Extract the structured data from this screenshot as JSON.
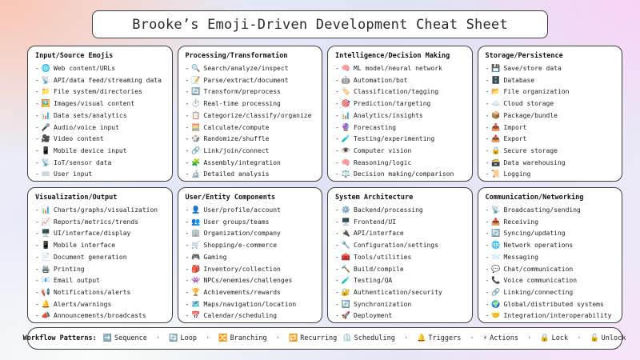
{
  "page_title": "Brooke’s Emoji-Driven Development Cheat Sheet",
  "item_prefix": "-",
  "theme": {
    "bg_corner_top_left": "#fac3ae",
    "bg_corner_top_right": "#fad1f5",
    "bg_center": "#dfe3f4",
    "bg_bottom": "#fafdf8",
    "panel_background": "#ffffff",
    "panel_border": "#3f3f3f",
    "text_color": "#222222"
  },
  "panels": [
    {
      "title": "Input/Source Emojis",
      "items": [
        {
          "icon": "globe",
          "emoji": "🌐",
          "label": "Web content/URLs"
        },
        {
          "icon": "satellite-antenna",
          "emoji": "📡",
          "label": "API/data feed/streaming data"
        },
        {
          "icon": "file-folder",
          "emoji": "📁",
          "label": "File system/directories"
        },
        {
          "icon": "framed-picture",
          "emoji": "🖼️",
          "label": "Images/visual content"
        },
        {
          "icon": "bar-chart",
          "emoji": "📊",
          "label": "Data sets/analytics"
        },
        {
          "icon": "microphone",
          "emoji": "🎤",
          "label": "Audio/voice input"
        },
        {
          "icon": "movie-camera",
          "emoji": "🎥",
          "label": "Video content"
        },
        {
          "icon": "mobile-phone",
          "emoji": "📱",
          "label": "Mobile device input"
        },
        {
          "icon": "satellite-antenna",
          "emoji": "📡",
          "label": "IoT/sensor data"
        },
        {
          "icon": "keyboard",
          "emoji": "⌨️",
          "label": "User input"
        }
      ]
    },
    {
      "title": "Processing/Transformation",
      "items": [
        {
          "icon": "magnifying-glass",
          "emoji": "🔍",
          "label": "Search/analyze/inspect"
        },
        {
          "icon": "memo",
          "emoji": "📝",
          "label": "Parse/extract/document"
        },
        {
          "icon": "counterclockwise-arrows",
          "emoji": "🔄",
          "label": "Transform/preprocess"
        },
        {
          "icon": "stopwatch",
          "emoji": "⏱️",
          "label": "Real-time processing"
        },
        {
          "icon": "clipboard",
          "emoji": "📋",
          "label": "Categorize/classify/organize"
        },
        {
          "icon": "abacus",
          "emoji": "🧮",
          "label": "Calculate/compute"
        },
        {
          "icon": "game-die",
          "emoji": "🎲",
          "label": "Randomize/shuffle"
        },
        {
          "icon": "link",
          "emoji": "🔗",
          "label": "Link/join/connect"
        },
        {
          "icon": "puzzle-piece",
          "emoji": "🧩",
          "label": "Assembly/integration"
        },
        {
          "icon": "microscope",
          "emoji": "🔬",
          "label": "Detailed analysis"
        }
      ]
    },
    {
      "title": "Intelligence/Decision Making",
      "items": [
        {
          "icon": "brain",
          "emoji": "🧠",
          "label": "ML model/neural network"
        },
        {
          "icon": "robot",
          "emoji": "🤖",
          "label": "Automation/bot"
        },
        {
          "icon": "label-tag",
          "emoji": "🏷️",
          "label": "Classification/tagging"
        },
        {
          "icon": "direct-hit",
          "emoji": "🎯",
          "label": "Prediction/targeting"
        },
        {
          "icon": "bar-chart",
          "emoji": "📊",
          "label": "Analytics/insights"
        },
        {
          "icon": "crystal-ball",
          "emoji": "🔮",
          "label": "Forecasting"
        },
        {
          "icon": "test-tube",
          "emoji": "🧪",
          "label": "Testing/experimenting"
        },
        {
          "icon": "eye",
          "emoji": "👁️",
          "label": "Computer vision"
        },
        {
          "icon": "brain",
          "emoji": "🧠",
          "label": "Reasoning/logic"
        },
        {
          "icon": "balance-scale",
          "emoji": "⚖️",
          "label": "Decision making/comparison"
        }
      ]
    },
    {
      "title": "Storage/Persistence",
      "items": [
        {
          "icon": "floppy-disk",
          "emoji": "💾",
          "label": "Save/store data"
        },
        {
          "icon": "file-cabinet",
          "emoji": "🗄️",
          "label": "Database"
        },
        {
          "icon": "open-file-folder",
          "emoji": "📂",
          "label": "File organization"
        },
        {
          "icon": "cloud",
          "emoji": "☁️",
          "label": "Cloud storage"
        },
        {
          "icon": "package",
          "emoji": "📦",
          "label": "Package/bundle"
        },
        {
          "icon": "inbox-tray",
          "emoji": "📥",
          "label": "Import"
        },
        {
          "icon": "outbox-tray",
          "emoji": "📤",
          "label": "Export"
        },
        {
          "icon": "lock",
          "emoji": "🔒",
          "label": "Secure storage"
        },
        {
          "icon": "card-file-box",
          "emoji": "🗃️",
          "label": "Data warehousing"
        },
        {
          "icon": "scroll",
          "emoji": "📜",
          "label": "Logging"
        }
      ]
    },
    {
      "title": "Visualization/Output",
      "items": [
        {
          "icon": "bar-chart",
          "emoji": "📊",
          "label": "Charts/graphs/visualization"
        },
        {
          "icon": "chart-increasing",
          "emoji": "📈",
          "label": "Reports/metrics/trends"
        },
        {
          "icon": "desktop-computer",
          "emoji": "🖥️",
          "label": "UI/interface/display"
        },
        {
          "icon": "mobile-phone",
          "emoji": "📱",
          "label": "Mobile interface"
        },
        {
          "icon": "page-facing-up",
          "emoji": "📄",
          "label": "Document generation"
        },
        {
          "icon": "printer",
          "emoji": "🖨️",
          "label": "Printing"
        },
        {
          "icon": "email",
          "emoji": "📧",
          "label": "Email output"
        },
        {
          "icon": "loudspeaker",
          "emoji": "📢",
          "label": "Notifications/alerts"
        },
        {
          "icon": "bell",
          "emoji": "🔔",
          "label": "Alerts/warnings"
        },
        {
          "icon": "megaphone",
          "emoji": "📣",
          "label": "Announcements/broadcasts"
        }
      ]
    },
    {
      "title": "User/Entity Components",
      "items": [
        {
          "icon": "bust-in-silhouette",
          "emoji": "👤",
          "label": "User/profile/account"
        },
        {
          "icon": "busts-in-silhouette",
          "emoji": "👥",
          "label": "User groups/teams"
        },
        {
          "icon": "office-building",
          "emoji": "🏢",
          "label": "Organization/company"
        },
        {
          "icon": "shopping-cart",
          "emoji": "🛒",
          "label": "Shopping/e-commerce"
        },
        {
          "icon": "game-controller",
          "emoji": "🎮",
          "label": "Gaming"
        },
        {
          "icon": "backpack",
          "emoji": "🎒",
          "label": "Inventory/collection"
        },
        {
          "icon": "alien-monster",
          "emoji": "👾",
          "label": "NPCs/enemies/challenges"
        },
        {
          "icon": "trophy",
          "emoji": "🏆",
          "label": "Achievements/rewards"
        },
        {
          "icon": "world-map",
          "emoji": "🗺️",
          "label": "Maps/navigation/location"
        },
        {
          "icon": "calendar",
          "emoji": "📅",
          "label": "Calendar/scheduling"
        }
      ]
    },
    {
      "title": "System Architecture",
      "items": [
        {
          "icon": "gear",
          "emoji": "⚙️",
          "label": "Backend/processing"
        },
        {
          "icon": "desktop-computer",
          "emoji": "🖥️",
          "label": "Frontend/UI"
        },
        {
          "icon": "electric-plug",
          "emoji": "🔌",
          "label": "API/interface"
        },
        {
          "icon": "wrench",
          "emoji": "🔧",
          "label": "Configuration/settings"
        },
        {
          "icon": "toolbox",
          "emoji": "🧰",
          "label": "Tools/utilities"
        },
        {
          "icon": "hammer",
          "emoji": "🔨",
          "label": "Build/compile"
        },
        {
          "icon": "test-tube",
          "emoji": "🧪",
          "label": "Testing/QA"
        },
        {
          "icon": "locked-with-key",
          "emoji": "🔐",
          "label": "Authentication/security"
        },
        {
          "icon": "counterclockwise-arrows",
          "emoji": "🔄",
          "label": "Synchronization"
        },
        {
          "icon": "rocket",
          "emoji": "🚀",
          "label": "Deployment"
        }
      ]
    },
    {
      "title": "Communication/Networking",
      "items": [
        {
          "icon": "satellite-antenna",
          "emoji": "📡",
          "label": "Broadcasting/sending"
        },
        {
          "icon": "inbox-tray",
          "emoji": "📥",
          "label": "Receiving"
        },
        {
          "icon": "counterclockwise-arrows",
          "emoji": "🔄",
          "label": "Syncing/updating"
        },
        {
          "icon": "globe",
          "emoji": "🌐",
          "label": "Network operations"
        },
        {
          "icon": "incoming-envelope",
          "emoji": "📨",
          "label": "Messaging"
        },
        {
          "icon": "speech-balloon",
          "emoji": "💬",
          "label": "Chat/communication"
        },
        {
          "icon": "telephone-receiver",
          "emoji": "📞",
          "label": "Voice communication"
        },
        {
          "icon": "link",
          "emoji": "🔗",
          "label": "Linking/connecting"
        },
        {
          "icon": "globe-earth",
          "emoji": "🌍",
          "label": "Global/distributed systems"
        },
        {
          "icon": "handshake",
          "emoji": "🤝",
          "label": "Integration/interoperability"
        }
      ]
    }
  ],
  "footer": {
    "label": "Workflow Patterns:",
    "separator": "·",
    "items": [
      {
        "icon": "arrow-right",
        "emoji": "➡️",
        "label": "Sequence",
        "sep_after": true
      },
      {
        "icon": "counterclockwise-arrows",
        "emoji": "🔄",
        "label": "Loop",
        "sep_after": true
      },
      {
        "icon": "shuffle-arrows",
        "emoji": "🔀",
        "label": "Branching",
        "sep_after": true
      },
      {
        "icon": "repeat-arrows",
        "emoji": "🔁",
        "label": "Recurring",
        "sep_after": false
      },
      {
        "icon": "timer-clock",
        "emoji": "⏲️",
        "label": "Scheduling",
        "sep_after": true
      },
      {
        "icon": "bell",
        "emoji": "🔔",
        "label": "Triggers",
        "sep_after": true
      },
      {
        "icon": "high-voltage",
        "emoji": "⚡",
        "label": "Actions",
        "sep_after": true
      },
      {
        "icon": "lock",
        "emoji": "🔒",
        "label": "Lock",
        "sep_after": true
      },
      {
        "icon": "unlock",
        "emoji": "🔓",
        "label": "Unlock",
        "sep_after": false
      }
    ]
  }
}
